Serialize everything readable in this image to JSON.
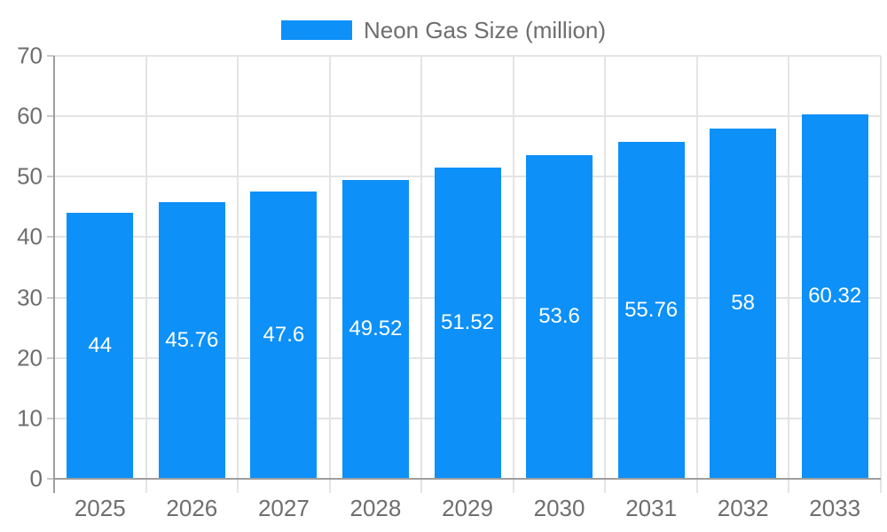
{
  "chart_data": {
    "type": "bar",
    "title": "",
    "legend": "Neon Gas Size (million)",
    "legend_position": "top",
    "categories": [
      "2025",
      "2026",
      "2027",
      "2028",
      "2029",
      "2030",
      "2031",
      "2032",
      "2033"
    ],
    "values": [
      44,
      45.76,
      47.6,
      49.52,
      51.52,
      53.6,
      55.76,
      58,
      60.32
    ],
    "value_labels": [
      "44",
      "45.76",
      "47.6",
      "49.52",
      "51.52",
      "53.6",
      "55.76",
      "58",
      "60.32"
    ],
    "xlabel": "",
    "ylabel": "",
    "ylim": [
      0,
      70
    ],
    "yticks": [
      0,
      10,
      20,
      30,
      40,
      50,
      60,
      70
    ],
    "grid": true,
    "colors": {
      "bar": "#0d90f8",
      "bar_label": "#ffffff",
      "axis_label": "#6e6e6e",
      "grid_line": "#e4e4e4",
      "axis_line": "#9e9e9e",
      "tick_line": "#c9c9c9",
      "background": "#ffffff"
    }
  }
}
